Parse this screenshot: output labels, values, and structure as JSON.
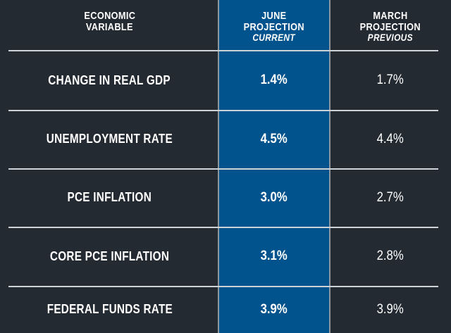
{
  "colors": {
    "background": "#242A32",
    "highlight": "#00538C",
    "horizontal_rule": "#CDD2D7",
    "vertical_rule": "#8D959E",
    "text": "#FFFFFF"
  },
  "table": {
    "header": {
      "variable": {
        "line1": "ECONOMIC",
        "line2": "VARIABLE"
      },
      "june": {
        "line1": "JUNE",
        "line2": "PROJECTION",
        "tag": "CURRENT"
      },
      "march": {
        "line1": "MARCH",
        "line2": "PROJECTION",
        "tag": "PREVIOUS"
      }
    },
    "rows": [
      {
        "label": "CHANGE IN REAL GDP",
        "current": "1.4%",
        "previous": "1.7%"
      },
      {
        "label": "UNEMPLOYMENT RATE",
        "current": "4.5%",
        "previous": "4.4%"
      },
      {
        "label": "PCE INFLATION",
        "current": "3.0%",
        "previous": "2.7%"
      },
      {
        "label": "CORE PCE INFLATION",
        "current": "3.1%",
        "previous": "2.8%"
      },
      {
        "label": "FEDERAL FUNDS RATE",
        "current": "3.9%",
        "previous": "3.9%"
      }
    ]
  },
  "chart_data": {
    "type": "table",
    "title": "",
    "columns": [
      "ECONOMIC VARIABLE",
      "JUNE PROJECTION (CURRENT)",
      "MARCH PROJECTION (PREVIOUS)"
    ],
    "rows": [
      [
        "CHANGE IN REAL GDP",
        "1.4%",
        "1.7%"
      ],
      [
        "UNEMPLOYMENT RATE",
        "4.5%",
        "4.4%"
      ],
      [
        "PCE INFLATION",
        "3.0%",
        "2.7%"
      ],
      [
        "CORE PCE INFLATION",
        "3.1%",
        "2.8%"
      ],
      [
        "FEDERAL FUNDS RATE",
        "3.9%",
        "3.9%"
      ]
    ],
    "layout": {
      "highlighted_column": 1,
      "highlight_color": "#00538C",
      "background_color": "#242A32"
    }
  }
}
